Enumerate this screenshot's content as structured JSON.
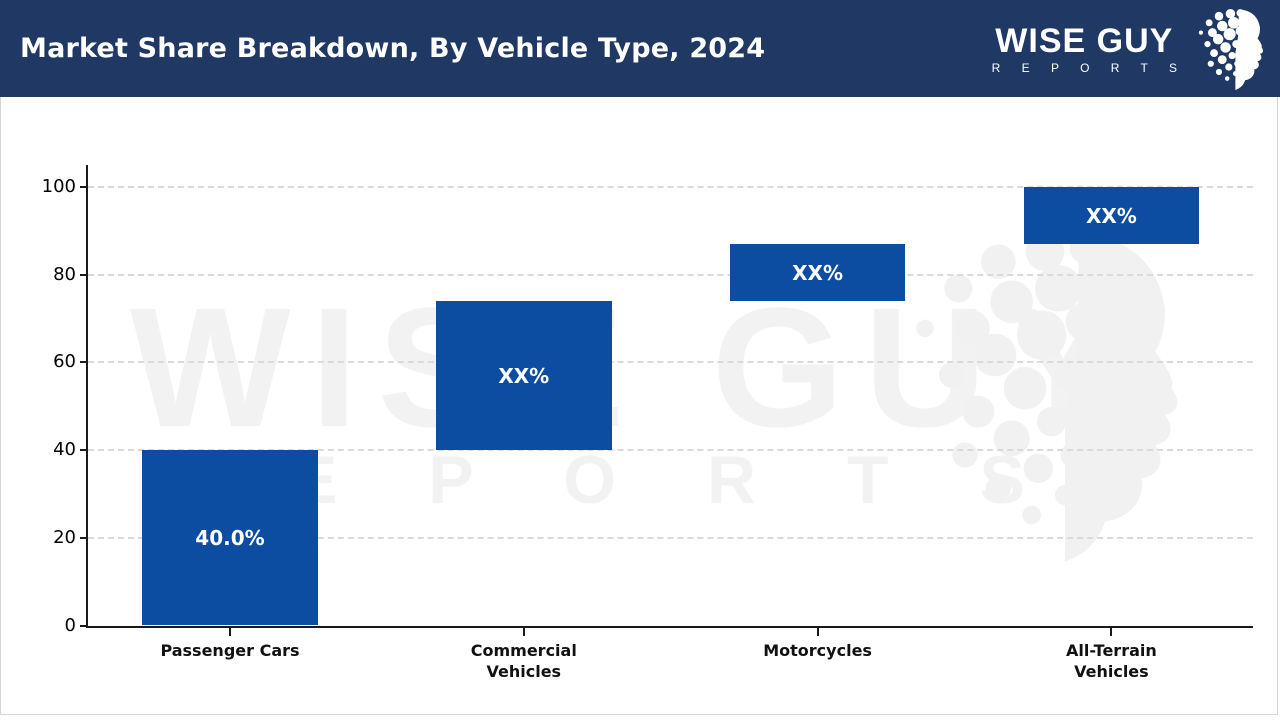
{
  "header": {
    "title": "Market Share Breakdown, By Vehicle Type, 2024",
    "logo": {
      "line1": "WISE GUY",
      "line2": "R E P O R T S"
    }
  },
  "watermark": {
    "line1": "WISE GUY",
    "line2": "R E P O R T S"
  },
  "chart_data": {
    "type": "bar",
    "subtype": "waterfall",
    "title": "Market Share Breakdown, By Vehicle Type, 2024",
    "categories": [
      "Passenger Cars",
      "Commercial Vehicles",
      "Motorcycles",
      "All-Terrain Vehicles"
    ],
    "category_label_lines": [
      [
        "Passenger Cars"
      ],
      [
        "Commercial",
        "Vehicles"
      ],
      [
        "Motorcycles"
      ],
      [
        "All-Terrain",
        "Vehicles"
      ]
    ],
    "segments": [
      {
        "category": "Passenger Cars",
        "label": "40.0%",
        "start": 0,
        "end": 40
      },
      {
        "category": "Commercial Vehicles",
        "label": "XX%",
        "start": 40,
        "end": 74
      },
      {
        "category": "Motorcycles",
        "label": "XX%",
        "start": 74,
        "end": 87
      },
      {
        "category": "All-Terrain Vehicles",
        "label": "XX%",
        "start": 87,
        "end": 100
      }
    ],
    "yticks": [
      0,
      20,
      40,
      60,
      80,
      100
    ],
    "ylim": [
      0,
      105
    ],
    "xlabel": "",
    "ylabel": "",
    "legend": "none",
    "grid": "horizontal-dashed",
    "bar_color": "#0d4da1",
    "bar_label_color": "#ffffff",
    "header_color": "#1f3864",
    "gridline_color": "#dadada",
    "watermark_color": "#f2f2f2"
  }
}
